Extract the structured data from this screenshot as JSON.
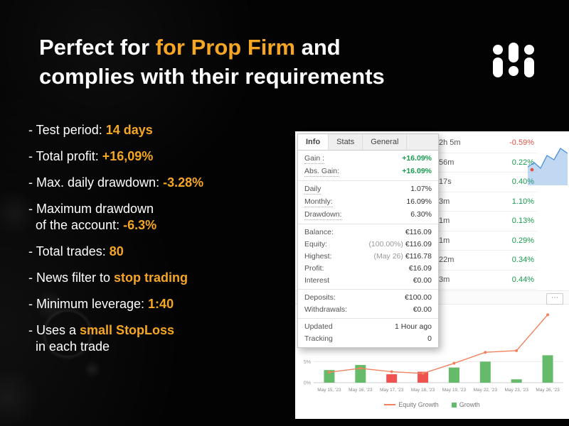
{
  "title": {
    "pre": "Perfect for ",
    "highlight": "for Prop Firm",
    "post": " and",
    "line2": "complies with their requirements"
  },
  "accent_color": "#f5a623",
  "bullets": [
    {
      "lines": [
        [
          {
            "text": "- Test period: "
          },
          {
            "text": "14 days",
            "hl": true
          }
        ]
      ]
    },
    {
      "lines": [
        [
          {
            "text": "- Total profit: "
          },
          {
            "text": "+16,09%",
            "hl": true
          }
        ]
      ]
    },
    {
      "lines": [
        [
          {
            "text": "- Max. daily drawdown: "
          },
          {
            "text": "-3.28%",
            "hl": true
          }
        ]
      ]
    },
    {
      "lines": [
        [
          {
            "text": "- Maximum drawdown"
          }
        ],
        [
          {
            "text": "of the account: "
          },
          {
            "text": "-6.3%",
            "hl": true
          }
        ]
      ]
    },
    {
      "lines": [
        [
          {
            "text": "- Total trades: "
          },
          {
            "text": "80",
            "hl": true
          }
        ]
      ]
    },
    {
      "lines": [
        [
          {
            "text": "- News filter to "
          },
          {
            "text": "stop trading",
            "hl": true
          }
        ]
      ]
    },
    {
      "lines": [
        [
          {
            "text": "- Minimum leverage: "
          },
          {
            "text": "1:40",
            "hl": true
          }
        ]
      ]
    },
    {
      "lines": [
        [
          {
            "text": "- Uses a "
          },
          {
            "text": "small StopLoss",
            "hl": true
          }
        ],
        [
          {
            "text": "in each trade"
          }
        ]
      ]
    }
  ],
  "panel": {
    "tabs": [
      {
        "label": "Info",
        "active": true
      },
      {
        "label": "Stats",
        "active": false
      },
      {
        "label": "General",
        "active": false
      }
    ],
    "sections": [
      [
        {
          "label": "Gain :",
          "value": "+16.09%",
          "green": true,
          "bold": true,
          "dotted": true
        },
        {
          "label": "Abs. Gain:",
          "value": "+16.09%",
          "green": true,
          "bold": true,
          "dotted": true
        }
      ],
      [
        {
          "label": "Daily",
          "value": "1.07%",
          "dotted": true
        },
        {
          "label": "Monthly:",
          "value": "16.09%",
          "dotted": true
        },
        {
          "label": "Drawdown:",
          "value": "6.30%",
          "dotted": true
        }
      ],
      [
        {
          "label": "Balance:",
          "value": "€116.09"
        },
        {
          "label": "Equity:",
          "note": "(100.00%)",
          "value": "€116.09"
        },
        {
          "label": "Highest:",
          "note": "(May 26)",
          "value": "€116.78"
        },
        {
          "label": "Profit:",
          "value": "€16.09"
        },
        {
          "label": "Interest",
          "value": "€0.00"
        }
      ],
      [
        {
          "label": "Deposits:",
          "value": "€100.00"
        },
        {
          "label": "Withdrawals:",
          "value": "€0.00"
        }
      ],
      [
        {
          "label": "Updated",
          "value": "1 Hour ago"
        },
        {
          "label": "Tracking",
          "value": "0"
        }
      ]
    ]
  },
  "trades": [
    {
      "time": "2h 5m",
      "pct": "-0.59%",
      "neg": true
    },
    {
      "time": "56m",
      "pct": "0.22%"
    },
    {
      "time": "17s",
      "pct": "0.40%"
    },
    {
      "time": "3m",
      "pct": "1.10%"
    },
    {
      "time": "1m",
      "pct": "0.13%"
    },
    {
      "time": "1m",
      "pct": "0.29%"
    },
    {
      "time": "22m",
      "pct": "0.34%"
    },
    {
      "time": "3m",
      "pct": "0.44%"
    }
  ],
  "shot": {
    "menu_label": "⋯"
  },
  "chart_data": {
    "type": "bar",
    "title": "Growth chart (daily growth bars with equity growth line)",
    "categories": [
      "May 15, '23",
      "May 16, '23",
      "May 17, '23",
      "May 18, '23",
      "May 19, '23",
      "May 22, '23",
      "May 23, '23",
      "May 26, '23"
    ],
    "series": [
      {
        "name": "Growth",
        "type": "bar",
        "values": [
          3.0,
          4.2,
          -2.0,
          -2.6,
          3.6,
          5.0,
          0.8,
          6.5
        ]
      },
      {
        "name": "Equity Growth",
        "type": "line",
        "values": [
          2.5,
          3.4,
          2.6,
          2.2,
          4.6,
          7.2,
          7.6,
          16.1
        ]
      }
    ],
    "yticks": [
      {
        "v": 0,
        "label": "0%"
      },
      {
        "v": 5,
        "label": "5%"
      }
    ],
    "ylim": [
      0,
      17
    ],
    "legend": [
      {
        "label": "Equity Growth",
        "marker": "line"
      },
      {
        "label": "Growth",
        "marker": "square"
      }
    ],
    "colors": {
      "positive": "#66bb6a",
      "negative": "#ef5350",
      "line": "#f0825f",
      "green_text": "#179a4d",
      "red_text": "#e05247"
    }
  }
}
